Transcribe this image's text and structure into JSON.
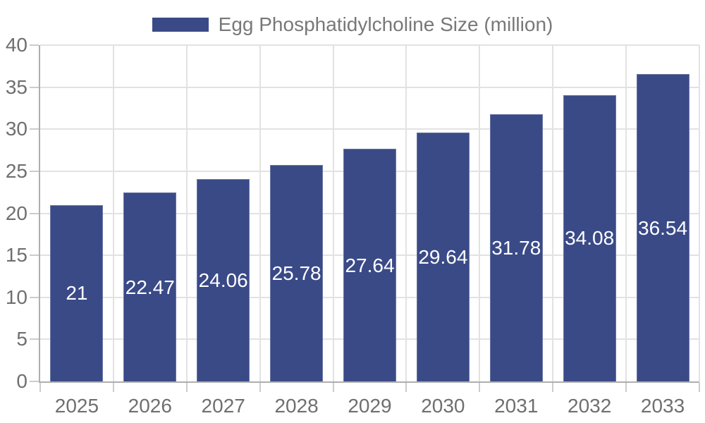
{
  "chart_data": {
    "type": "bar",
    "title": "Egg Phosphatidylcholine Size (million)",
    "categories": [
      "2025",
      "2026",
      "2027",
      "2028",
      "2029",
      "2030",
      "2031",
      "2032",
      "2033"
    ],
    "values": [
      21,
      22.47,
      24.06,
      25.78,
      27.64,
      29.64,
      31.78,
      34.08,
      36.54
    ],
    "value_labels": [
      "21",
      "22.47",
      "24.06",
      "25.78",
      "27.64",
      "29.64",
      "31.78",
      "34.08",
      "36.54"
    ],
    "xlabel": "",
    "ylabel": "",
    "ylim": [
      0,
      40
    ],
    "yticks": [
      0,
      5,
      10,
      15,
      20,
      25,
      30,
      35,
      40
    ],
    "grid": "both",
    "legend_position": "top-center",
    "legend_entries": [
      "Egg Phosphatidylcholine Size (million)"
    ],
    "colors": {
      "bar": "#3a4a87",
      "bar_label": "#ffffff",
      "title_text": "#787878",
      "axis_text": "#6f6f6f",
      "gridline": "#e2e2e2",
      "axis_line": "#aeaeae",
      "tick_mark": "#cccccc",
      "background": "#ffffff"
    }
  }
}
